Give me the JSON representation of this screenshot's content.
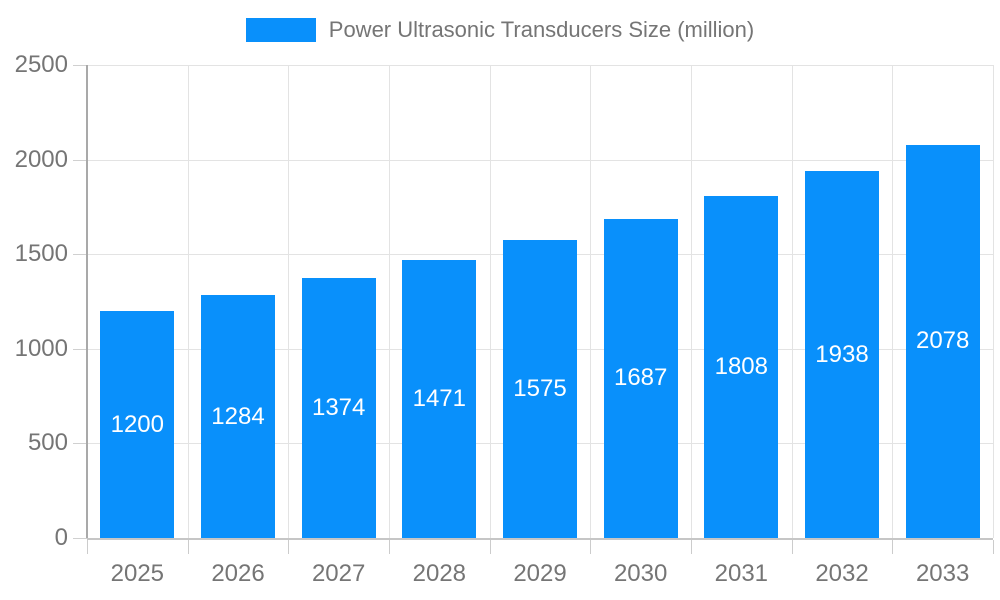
{
  "legend": {
    "label": "Power Ultrasonic Transducers Size (million)"
  },
  "chart_data": {
    "type": "bar",
    "title": "Power Ultrasonic Transducers Size (million)",
    "series_name": "Power Ultrasonic Transducers Size (million)",
    "categories": [
      "2025",
      "2026",
      "2027",
      "2028",
      "2029",
      "2030",
      "2031",
      "2032",
      "2033"
    ],
    "values": [
      1200,
      1284,
      1374,
      1471,
      1575,
      1687,
      1808,
      1938,
      2078
    ],
    "value_labels": [
      "1200",
      "1284",
      "1374",
      "1471",
      "1575",
      "1687",
      "1808",
      "1938",
      "2078"
    ],
    "xlabel": "",
    "ylabel": "",
    "ylim": [
      0,
      2500
    ],
    "yticks": [
      0,
      500,
      1000,
      1500,
      2000,
      2500
    ],
    "grid": true,
    "legend_position": "top-center",
    "colors": {
      "bar": "#0990fb",
      "value_label": "#ffffff",
      "axis_label": "#757575",
      "gridline": "#e3e3e3",
      "y_axis_line": "#a9a9a9",
      "x_axis_line": "#c6c6c6",
      "background": "#ffffff"
    }
  }
}
